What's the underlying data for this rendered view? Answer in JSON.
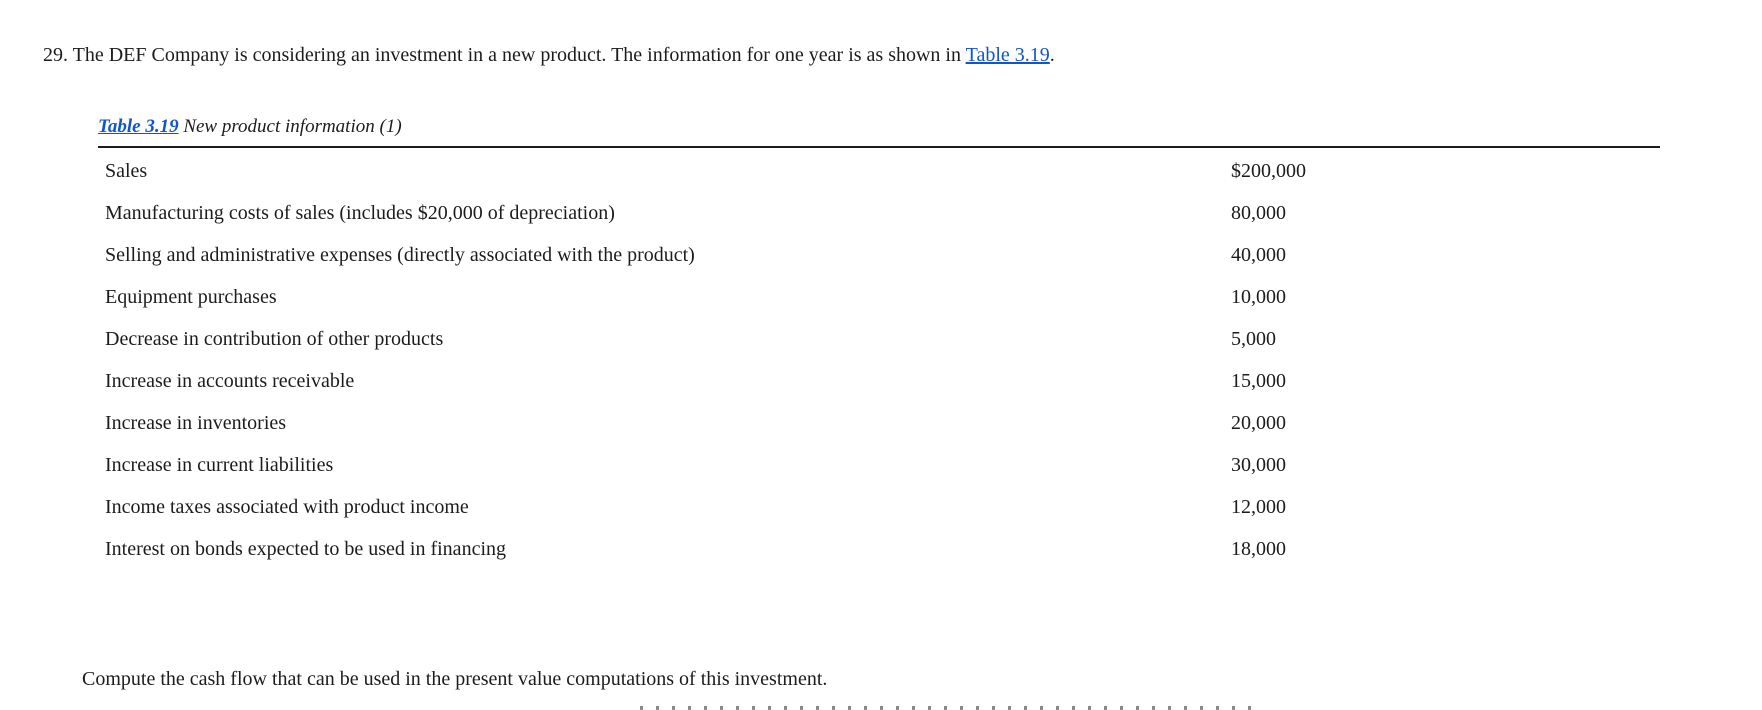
{
  "problem": {
    "number": "29.",
    "text_before_link": " The DEF Company is considering an investment in a new product. The information for one year is as shown in ",
    "link_text": "Table 3.19",
    "text_after_link": "."
  },
  "table": {
    "caption_link": "Table 3.19",
    "caption_rest": " New product information (1)",
    "rows": [
      {
        "label": "Sales",
        "value": "$200,000"
      },
      {
        "label": "Manufacturing costs of sales (includes $20,000 of depreciation)",
        "value": "80,000"
      },
      {
        "label": "Selling and administrative expenses (directly associated with the product)",
        "value": "40,000"
      },
      {
        "label": "Equipment purchases",
        "value": "10,000"
      },
      {
        "label": "Decrease in contribution of other products",
        "value": "5,000"
      },
      {
        "label": "Increase in accounts receivable",
        "value": "15,000"
      },
      {
        "label": "Increase in inventories",
        "value": "20,000"
      },
      {
        "label": "Increase in current liabilities",
        "value": "30,000"
      },
      {
        "label": "Income taxes associated with product income",
        "value": "12,000"
      },
      {
        "label": "Interest on bonds expected to be used in financing",
        "value": "18,000"
      }
    ]
  },
  "footer": {
    "instruction": "Compute the cash flow that can be used in the present value computations of this investment."
  },
  "colors": {
    "link": "#1155cc",
    "text": "#1c1c1c"
  }
}
